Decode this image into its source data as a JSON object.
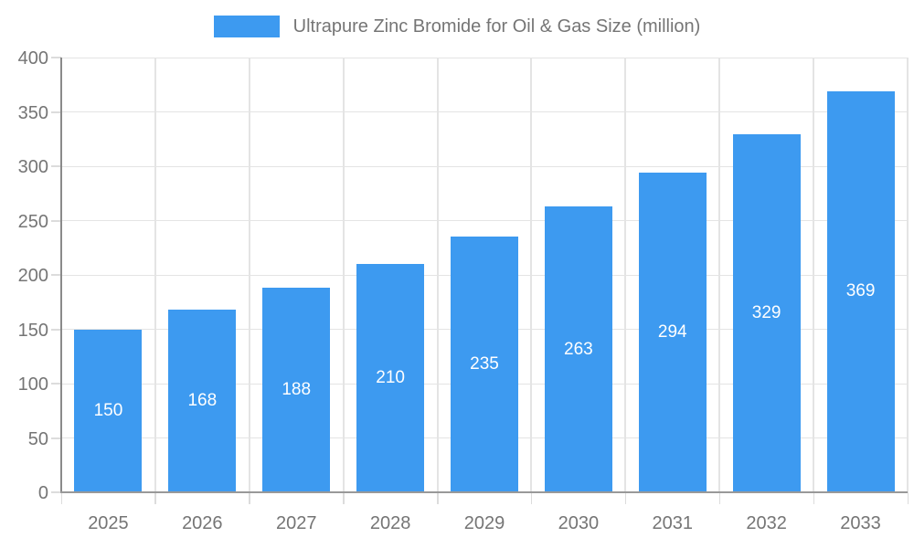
{
  "chart_data": {
    "type": "bar",
    "title": "Ultrapure Zinc Bromide for Oil & Gas Size (million)",
    "series": [
      {
        "name": "Ultrapure Zinc Bromide for Oil & Gas Size (million)",
        "values": [
          150,
          168,
          188,
          210,
          235,
          263,
          294,
          329,
          369
        ]
      }
    ],
    "categories": [
      "2025",
      "2026",
      "2027",
      "2028",
      "2029",
      "2030",
      "2031",
      "2032",
      "2033"
    ],
    "xlabel": "",
    "ylabel": "",
    "ylim": [
      0,
      400
    ],
    "yticks": [
      0,
      50,
      100,
      150,
      200,
      250,
      300,
      350,
      400
    ],
    "grid": true,
    "legend_position": "top-center",
    "bar_labels_inside": true,
    "colors": {
      "bar": "#3D9AF0",
      "bar_label": "#FFFFFF",
      "axis_label": "#757575",
      "legend_text": "#757575",
      "gridline": "#E4E4E4",
      "axis_line": "#999999",
      "y_axis_line": "#8A8A8A",
      "tick": "#DCDCDC",
      "background": "#FFFFFF"
    }
  }
}
